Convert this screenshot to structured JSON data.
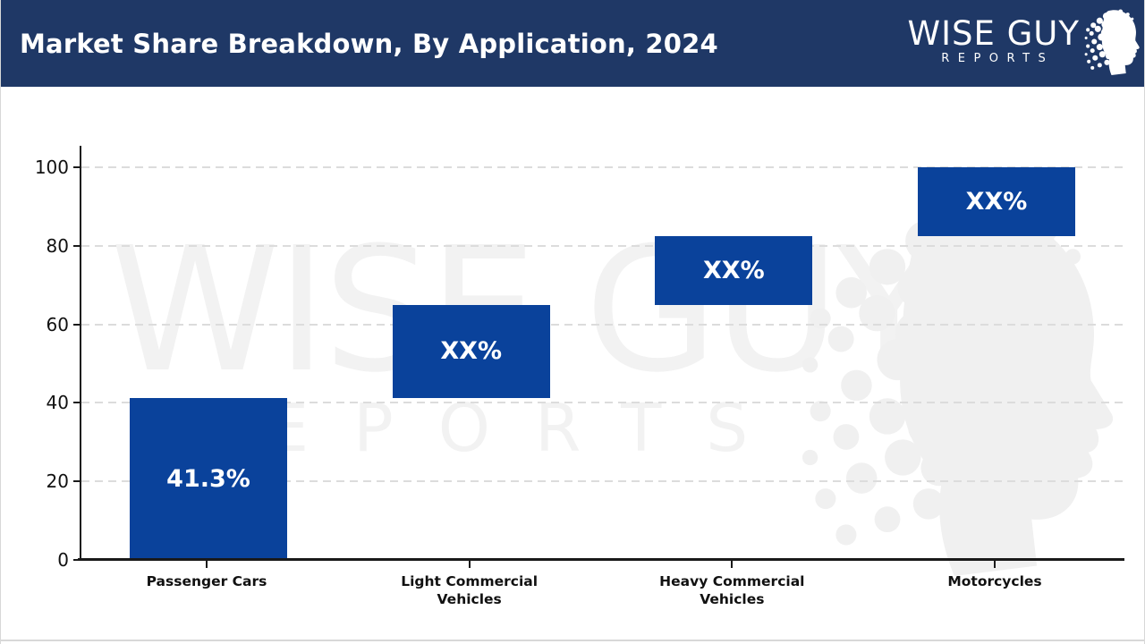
{
  "header": {
    "bg_color": "#1f3866",
    "title": "Market Share Breakdown, By Application, 2024",
    "logo": {
      "line1": "WISE GUY",
      "line2": "REPORTS"
    }
  },
  "watermark": {
    "line1": "WISE GUY",
    "line2": "REPORTS"
  },
  "chart_data": {
    "type": "bar",
    "subtype": "floating-waterfall",
    "title": "Market Share Breakdown, By Application, 2024",
    "categories": [
      "Passenger Cars",
      "Light Commercial Vehicles",
      "Heavy Commercial Vehicles",
      "Motorcycles"
    ],
    "segments": [
      {
        "category": "Passenger Cars",
        "start": 0,
        "end": 41.3,
        "label": "41.3%"
      },
      {
        "category": "Light Commercial Vehicles",
        "start": 41.3,
        "end": 65,
        "label": "XX%"
      },
      {
        "category": "Heavy Commercial Vehicles",
        "start": 65,
        "end": 82.5,
        "label": "XX%"
      },
      {
        "category": "Motorcycles",
        "start": 82.5,
        "end": 100,
        "label": "XX%"
      }
    ],
    "ylim": [
      0,
      100
    ],
    "yticks": [
      0,
      20,
      40,
      60,
      80,
      100
    ],
    "bar_color": "#0a429b",
    "bar_label_color": "#ffffff",
    "grid": "horizontal-dashed",
    "axis_color": "#1a1a1a",
    "legend": "none"
  }
}
